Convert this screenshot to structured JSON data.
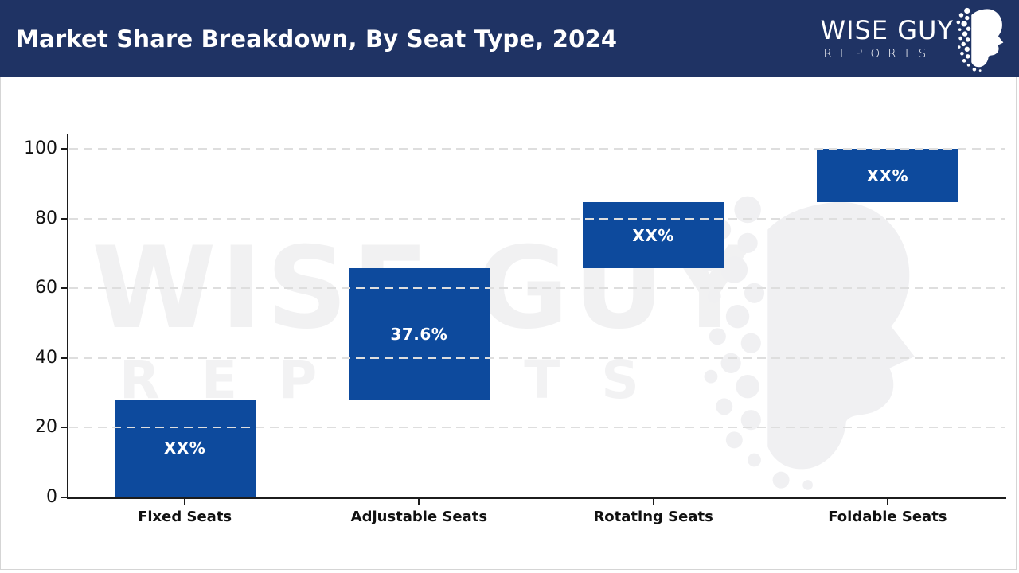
{
  "header": {
    "title": "Market Share Breakdown, By Seat Type, 2024",
    "logo_line1": "WISE GUY",
    "logo_line2": "REPORTS"
  },
  "watermark": {
    "line1": "WISE GUY",
    "line2": "REPORTS"
  },
  "chart_data": {
    "type": "bar",
    "subtype": "waterfall",
    "title": "Market Share Breakdown, By Seat Type, 2024",
    "categories": [
      "Fixed Seats",
      "Adjustable Seats",
      "Rotating Seats",
      "Foldable Seats"
    ],
    "values": [
      28.1,
      37.6,
      19.0,
      15.3
    ],
    "cumulative_start": [
      0,
      28.1,
      65.7,
      84.7
    ],
    "cumulative_end": [
      28.1,
      65.7,
      84.7,
      100
    ],
    "bar_labels": [
      "XX%",
      "37.6%",
      "XX%",
      "XX%"
    ],
    "yticks": [
      0,
      20,
      40,
      60,
      80,
      100
    ],
    "ylim": [
      0,
      104
    ],
    "xlabel": "",
    "ylabel": "",
    "grid": "horizontal-dashed",
    "legend": "none",
    "bar_color": "#0d4a9d"
  },
  "colors": {
    "header_bg": "#1f3364",
    "bar": "#0d4a9d",
    "gridline": "#dedede",
    "axis": "#1c1c1c",
    "watermark": "#f1f1f2"
  }
}
